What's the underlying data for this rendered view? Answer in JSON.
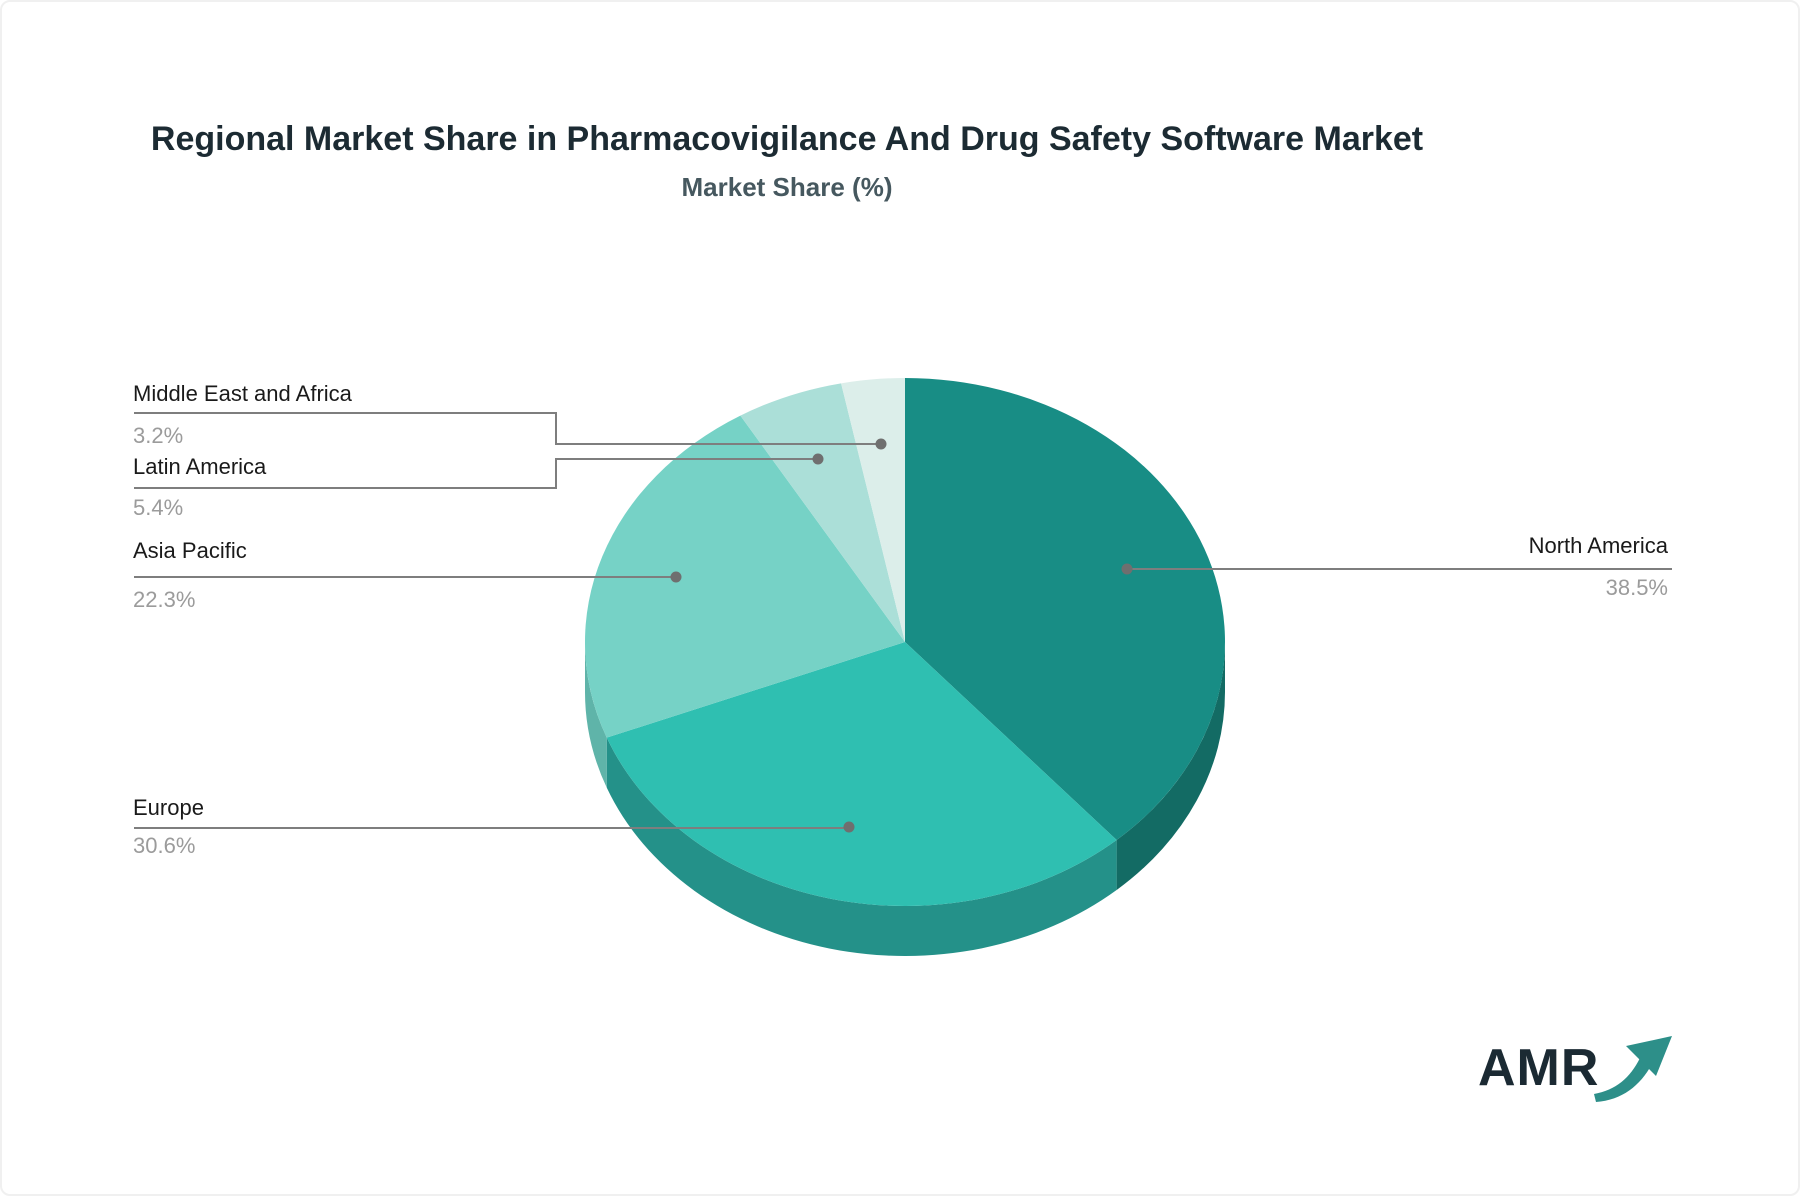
{
  "chart_data": {
    "type": "pie",
    "style": "3d",
    "direction": "clockwise",
    "start_angle": "12-oclock",
    "unit": "%",
    "title": "Regional Market Share in Pharmacovigilance And Drug Safety Software Market",
    "subtitle": "Market Share (%)",
    "legend_position": "callout-labels",
    "series": [
      {
        "label": "North America",
        "value": 38.5,
        "display": "38.5%",
        "color": "#188d85",
        "side_color": "#136b64",
        "callout": "right"
      },
      {
        "label": "Europe",
        "value": 30.6,
        "display": "30.6%",
        "color": "#2fbfb1",
        "side_color": "#249189",
        "callout": "left"
      },
      {
        "label": "Asia Pacific",
        "value": 22.3,
        "display": "22.3%",
        "color": "#76d2c6",
        "side_color": "#5fb4a9",
        "callout": "left"
      },
      {
        "label": "Latin America",
        "value": 5.4,
        "display": "5.4%",
        "color": "#abdfd8",
        "side_color": "#8fc5bd",
        "callout": "left"
      },
      {
        "label": "Middle East and Africa",
        "value": 3.2,
        "display": "3.2%",
        "color": "#dceeea",
        "side_color": "#bfd9d4",
        "callout": "left"
      }
    ],
    "callout_line_color": "#7e7e7e",
    "callout_dot_color": "#6f6f6f",
    "label_color": "#1a1a1a",
    "value_color": "#9b9b9b"
  },
  "logo": {
    "text": "AMR",
    "text_color": "#1b2a33",
    "arrow_icon": "trend-up-arrow",
    "arrow_color": "#2d8f89"
  }
}
